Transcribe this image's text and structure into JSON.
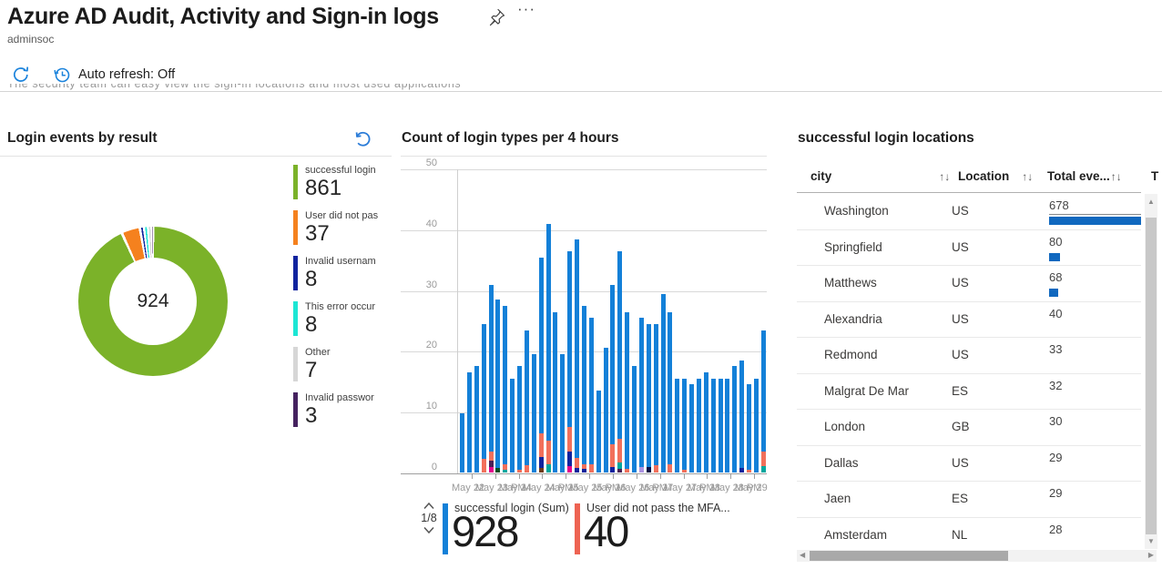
{
  "header": {
    "title": "Azure AD Audit, Activity and Sign-in logs",
    "subtitle": "adminsoc",
    "more_label": "···",
    "auto_refresh_label": "Auto refresh: Off",
    "clipped_description": "The security team can easy view the sign-in locations and most used applications"
  },
  "colors": {
    "accent_blue": "#1b83dc",
    "bar_blue": "#1380d8",
    "data_bar_blue": "#1068bf"
  },
  "chart_data": [
    {
      "id": "login_events_by_result",
      "type": "pie",
      "title": "Login events by result",
      "center_total": "924",
      "legend_position": "right",
      "slices": [
        {
          "label": "successful login",
          "value": 861,
          "color": "#7bb229"
        },
        {
          "label": "User did not pas",
          "value": 37,
          "color": "#f5811e"
        },
        {
          "label": "Invalid usernam",
          "value": 8,
          "color": "#10239e"
        },
        {
          "label": "This error occur",
          "value": 8,
          "color": "#1ce6d4"
        },
        {
          "label": "Other",
          "value": 7,
          "color": "#d6d6d6"
        },
        {
          "label": "Invalid passwor",
          "value": 3,
          "color": "#45225f"
        }
      ]
    },
    {
      "id": "count_of_login_types",
      "type": "bar",
      "stacked": true,
      "title": "Count of login types per 4 hours",
      "ylim": [
        0,
        50
      ],
      "y_ticks": [
        "50",
        "40",
        "30",
        "20",
        "10",
        "0"
      ],
      "grid": true,
      "x_tick_labels": [
        "May 22",
        "May 23 PM",
        "May 24",
        "May 24 PM",
        "May 25",
        "May 25 PM",
        "May 26",
        "May 26 PM",
        "May 27",
        "May 27 PM",
        "May 28",
        "May 28 PM",
        "May 29"
      ],
      "series_colors": {
        "bl": "#1380d8",
        "or": "#f2705b",
        "nv": "#10239e",
        "te": "#00a69e",
        "mg": "#e3008c",
        "pu": "#4b2058",
        "gr": "#0b4f22",
        "br": "#6e3b17",
        "lv": "#ab92e0",
        "bk": "#0a1045"
      },
      "bars": [
        {
          "t": 9.8,
          "s": []
        },
        {
          "t": 16.5,
          "s": []
        },
        {
          "t": 17.5,
          "s": []
        },
        {
          "t": 24.5,
          "s": [
            [
              "or",
              2.2
            ]
          ]
        },
        {
          "t": 31,
          "s": [
            [
              "mg",
              0.9
            ],
            [
              "pu",
              1.0
            ],
            [
              "or",
              1.5
            ]
          ]
        },
        {
          "t": 28.5,
          "s": [
            [
              "gr",
              0.7
            ]
          ]
        },
        {
          "t": 27.5,
          "s": [
            [
              "te",
              0.5
            ],
            [
              "or",
              0.8
            ]
          ]
        },
        {
          "t": 15.5,
          "s": []
        },
        {
          "t": 17.5,
          "s": [
            [
              "or",
              0.5
            ]
          ]
        },
        {
          "t": 23.5,
          "s": [
            [
              "or",
              1.2
            ]
          ]
        },
        {
          "t": 19.5,
          "s": []
        },
        {
          "t": 35.5,
          "s": [
            [
              "br",
              0.7
            ],
            [
              "nv",
              1.8
            ],
            [
              "or",
              4.0
            ]
          ]
        },
        {
          "t": 41,
          "s": [
            [
              "te",
              1.3
            ],
            [
              "or",
              4.0
            ]
          ]
        },
        {
          "t": 26.5,
          "s": []
        },
        {
          "t": 19.5,
          "s": []
        },
        {
          "t": 36.5,
          "s": [
            [
              "mg",
              1.0
            ],
            [
              "nv",
              2.5
            ],
            [
              "or",
              4.0
            ]
          ]
        },
        {
          "t": 38.5,
          "s": [
            [
              "nv",
              0.7
            ],
            [
              "or",
              1.7
            ]
          ]
        },
        {
          "t": 27.5,
          "s": [
            [
              "nv",
              0.6
            ],
            [
              "or",
              0.8
            ]
          ]
        },
        {
          "t": 25.5,
          "s": [
            [
              "or",
              1.3
            ]
          ]
        },
        {
          "t": 13.5,
          "s": []
        },
        {
          "t": 20.5,
          "s": []
        },
        {
          "t": 31,
          "s": [
            [
              "nv",
              0.9
            ],
            [
              "or",
              3.7
            ]
          ]
        },
        {
          "t": 36.5,
          "s": [
            [
              "pu",
              0.6
            ],
            [
              "te",
              1.1
            ],
            [
              "or",
              3.9
            ]
          ]
        },
        {
          "t": 26.5,
          "s": [
            [
              "or",
              0.6
            ]
          ]
        },
        {
          "t": 17.5,
          "s": []
        },
        {
          "t": 25.5,
          "s": [
            [
              "lv",
              0.9
            ]
          ]
        },
        {
          "t": 24.5,
          "s": [
            [
              "bk",
              0.9
            ]
          ]
        },
        {
          "t": 24.5,
          "s": [
            [
              "or",
              1.2
            ]
          ]
        },
        {
          "t": 29.5,
          "s": []
        },
        {
          "t": 26.5,
          "s": [
            [
              "or",
              1.4
            ]
          ]
        },
        {
          "t": 15.5,
          "s": []
        },
        {
          "t": 15.5,
          "s": [
            [
              "or",
              0.5
            ]
          ]
        },
        {
          "t": 14.5,
          "s": []
        },
        {
          "t": 15.5,
          "s": []
        },
        {
          "t": 16.5,
          "s": []
        },
        {
          "t": 15.5,
          "s": []
        },
        {
          "t": 15.5,
          "s": []
        },
        {
          "t": 15.5,
          "s": []
        },
        {
          "t": 17.5,
          "s": []
        },
        {
          "t": 18.5,
          "s": [
            [
              "nv",
              0.8
            ]
          ]
        },
        {
          "t": 14.5,
          "s": [
            [
              "or",
              0.5
            ]
          ]
        },
        {
          "t": 15.5,
          "s": []
        },
        {
          "t": 23.5,
          "s": [
            [
              "te",
              1.1
            ],
            [
              "or",
              2.3
            ]
          ]
        }
      ],
      "pager": "1/8",
      "summary": [
        {
          "label": "successful login (Sum)",
          "value": "928",
          "color": "#1380d8"
        },
        {
          "label": "User did not pass the MFA...",
          "value": "40",
          "color": "#ee6352"
        }
      ]
    },
    {
      "id": "successful_login_locations",
      "type": "table",
      "title": "successful login locations",
      "columns": [
        {
          "label": "city",
          "sortable": true
        },
        {
          "label": "Location",
          "sortable": true
        },
        {
          "label": "Total eve...",
          "sortable": true
        },
        {
          "label": "T",
          "sortable": false
        }
      ],
      "sort_icon": "↑↓",
      "bar_max": 678,
      "rows": [
        {
          "city": "Washington",
          "location": "US",
          "total": 678
        },
        {
          "city": "Springfield",
          "location": "US",
          "total": 80
        },
        {
          "city": "Matthews",
          "location": "US",
          "total": 68
        },
        {
          "city": "Alexandria",
          "location": "US",
          "total": 40
        },
        {
          "city": "Redmond",
          "location": "US",
          "total": 33
        },
        {
          "city": "Malgrat De Mar",
          "location": "ES",
          "total": 32
        },
        {
          "city": "London",
          "location": "GB",
          "total": 30
        },
        {
          "city": "Dallas",
          "location": "US",
          "total": 29
        },
        {
          "city": "Jaen",
          "location": "ES",
          "total": 29
        },
        {
          "city": "Amsterdam",
          "location": "NL",
          "total": 28
        }
      ]
    }
  ]
}
